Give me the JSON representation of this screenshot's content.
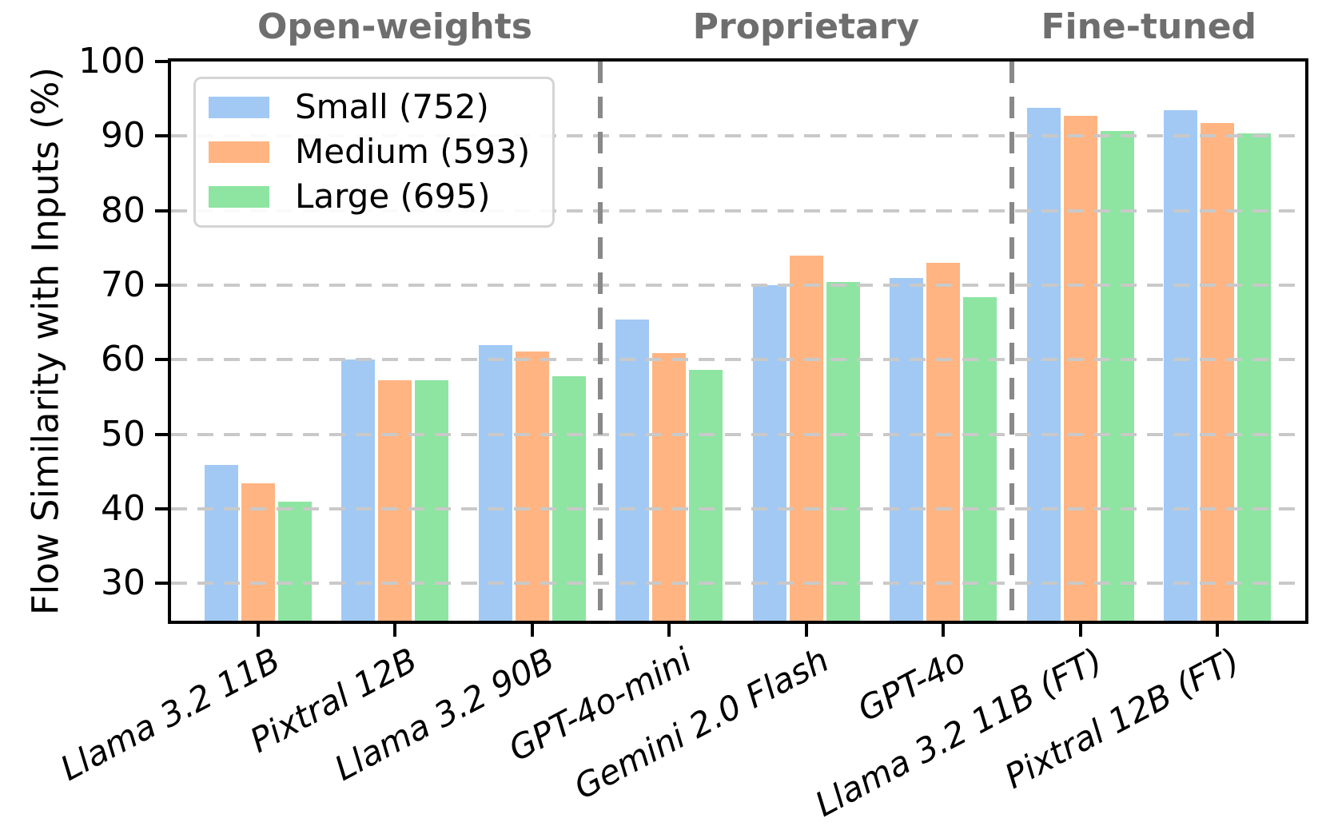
{
  "chart_data": {
    "type": "bar",
    "title": "",
    "xlabel": "",
    "ylabel": "Flow Similarity with Inputs (%)",
    "ylim": [
      25,
      100
    ],
    "yticks": [
      30,
      40,
      50,
      60,
      70,
      80,
      90,
      100
    ],
    "grid": "horizontal dashed, drawn over bars",
    "legend_position": "upper-left",
    "categories": [
      "Llama 3.2 11B",
      "Pixtral 12B",
      "Llama 3.2 90B",
      "GPT-4o-mini",
      "Gemini 2.0 Flash",
      "GPT-4o",
      "Llama 3.2 11B (FT)",
      "Pixtral 12B (FT)"
    ],
    "sections": [
      {
        "label": "Open-weights",
        "category_indexes": [
          0,
          1,
          2
        ]
      },
      {
        "label": "Proprietary",
        "category_indexes": [
          3,
          4,
          5
        ]
      },
      {
        "label": "Fine-tuned",
        "category_indexes": [
          6,
          7
        ]
      }
    ],
    "series": [
      {
        "name": "Small (752)",
        "color": "#a1c9f4",
        "values": [
          45.9,
          60.0,
          62.0,
          65.4,
          70.0,
          71.0,
          93.8,
          93.5
        ]
      },
      {
        "name": "Medium (593)",
        "color": "#ffb482",
        "values": [
          43.4,
          57.2,
          61.1,
          60.9,
          74.0,
          73.0,
          92.7,
          91.8
        ]
      },
      {
        "name": "Large (695)",
        "color": "#8de5a1",
        "values": [
          41.0,
          57.3,
          57.8,
          58.6,
          70.4,
          68.4,
          90.7,
          90.4
        ]
      }
    ],
    "colors": {
      "grid": "#c9c9c9",
      "divider": "#898989",
      "section_title": "#6e6e6e",
      "axis": "#000000",
      "background": "#ffffff"
    }
  }
}
